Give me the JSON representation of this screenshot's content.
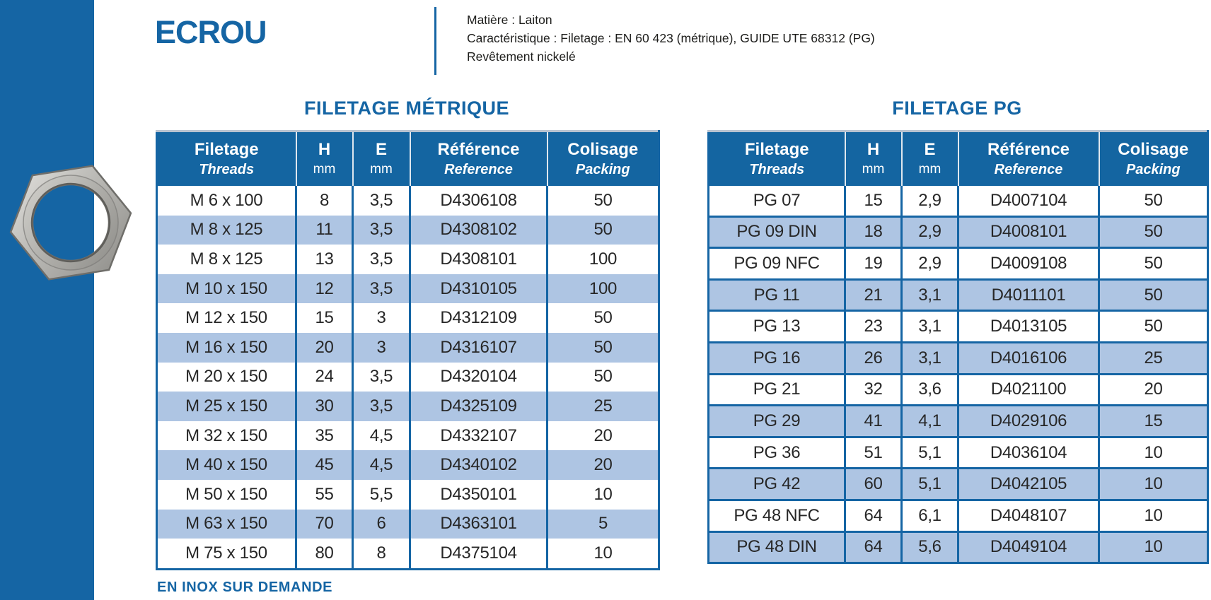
{
  "header": {
    "title": "ECROU",
    "info_lines": [
      "Matière : Laiton",
      "Caractéristique : Filetage : EN 60 423 (métrique), GUIDE UTE 68312 (PG)",
      "Revêtement nickelé"
    ]
  },
  "colors": {
    "primary_blue": "#1565a4",
    "header_blue": "#1465a1",
    "row_alt_blue": "#aec5e3",
    "text_dark": "#272727"
  },
  "icons": {
    "product_photo": "hex-nut-photo"
  },
  "tables": [
    {
      "title": "FILETAGE MÉTRIQUE",
      "columns": [
        {
          "label": "Filetage",
          "sub": "Threads"
        },
        {
          "label": "H",
          "sub": "mm"
        },
        {
          "label": "E",
          "sub": "mm"
        },
        {
          "label": "Référence",
          "sub": "Reference"
        },
        {
          "label": "Colisage",
          "sub": "Packing"
        }
      ],
      "rows": [
        [
          "M 6 x 100",
          "8",
          "3,5",
          "D4306108",
          "50"
        ],
        [
          "M 8 x 125",
          "11",
          "3,5",
          "D4308102",
          "50"
        ],
        [
          "M 8 x 125",
          "13",
          "3,5",
          "D4308101",
          "100"
        ],
        [
          "M 10 x 150",
          "12",
          "3,5",
          "D4310105",
          "100"
        ],
        [
          "M 12 x 150",
          "15",
          "3",
          "D4312109",
          "50"
        ],
        [
          "M 16 x 150",
          "20",
          "3",
          "D4316107",
          "50"
        ],
        [
          "M 20 x 150",
          "24",
          "3,5",
          "D4320104",
          "50"
        ],
        [
          "M 25 x 150",
          "30",
          "3,5",
          "D4325109",
          "25"
        ],
        [
          "M 32 x 150",
          "35",
          "4,5",
          "D4332107",
          "20"
        ],
        [
          "M 40 x 150",
          "45",
          "4,5",
          "D4340102",
          "20"
        ],
        [
          "M 50 x 150",
          "55",
          "5,5",
          "D4350101",
          "10"
        ],
        [
          "M 63 x 150",
          "70",
          "6",
          "D4363101",
          "5"
        ],
        [
          "M 75 x 150",
          "80",
          "8",
          "D4375104",
          "10"
        ]
      ]
    },
    {
      "title": "FILETAGE PG",
      "columns": [
        {
          "label": "Filetage",
          "sub": "Threads"
        },
        {
          "label": "H",
          "sub": "mm"
        },
        {
          "label": "E",
          "sub": "mm"
        },
        {
          "label": "Référence",
          "sub": "Reference"
        },
        {
          "label": "Colisage",
          "sub": "Packing"
        }
      ],
      "rows": [
        [
          "PG 07",
          "15",
          "2,9",
          "D4007104",
          "50"
        ],
        [
          "PG 09 DIN",
          "18",
          "2,9",
          "D4008101",
          "50"
        ],
        [
          "PG 09 NFC",
          "19",
          "2,9",
          "D4009108",
          "50"
        ],
        [
          "PG 11",
          "21",
          "3,1",
          "D4011101",
          "50"
        ],
        [
          "PG 13",
          "23",
          "3,1",
          "D4013105",
          "50"
        ],
        [
          "PG 16",
          "26",
          "3,1",
          "D4016106",
          "25"
        ],
        [
          "PG 21",
          "32",
          "3,6",
          "D4021100",
          "20"
        ],
        [
          "PG 29",
          "41",
          "4,1",
          "D4029106",
          "15"
        ],
        [
          "PG 36",
          "51",
          "5,1",
          "D4036104",
          "10"
        ],
        [
          "PG 42",
          "60",
          "5,1",
          "D4042105",
          "10"
        ],
        [
          "PG 48 NFC",
          "64",
          "6,1",
          "D4048107",
          "10"
        ],
        [
          "PG 48 DIN",
          "64",
          "5,6",
          "D4049104",
          "10"
        ]
      ]
    }
  ],
  "footer": {
    "note": "EN INOX SUR DEMANDE"
  }
}
